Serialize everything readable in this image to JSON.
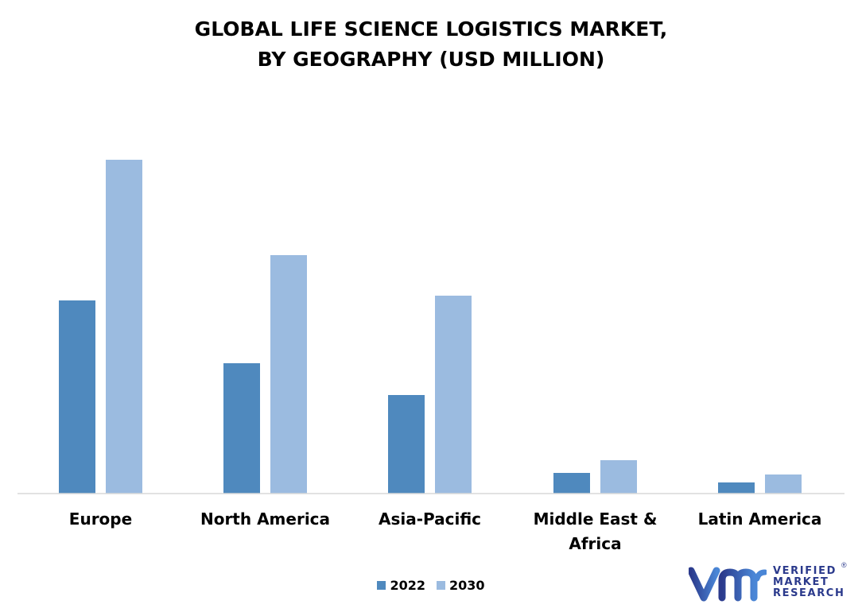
{
  "chart_data": {
    "type": "bar",
    "title_lines": [
      "GLOBAL LIFE SCIENCE LOGISTICS MARKET,",
      "BY GEOGRAPHY (USD MILLION)"
    ],
    "categories": [
      "Europe",
      "North America",
      "Asia-Pacific",
      "Middle East & Africa",
      "Latin America"
    ],
    "category_label_lines": [
      [
        "Europe"
      ],
      [
        "North America"
      ],
      [
        "Asia-Pacific"
      ],
      [
        "Middle East &",
        "Africa"
      ],
      [
        "Latin America"
      ]
    ],
    "series": [
      {
        "name": "2022",
        "color": "#4f89be",
        "values": [
          243,
          164,
          124,
          26,
          14
        ]
      },
      {
        "name": "2030",
        "color": "#9bbbe0",
        "values": [
          420,
          300,
          249,
          42,
          24
        ]
      }
    ],
    "ylim": [
      0,
      420
    ],
    "axis_ticks_visible": false,
    "grid": false,
    "legend_position": "bottom-center"
  },
  "logo": {
    "lines": [
      "VERIFIED",
      "MARKET",
      "RESEARCH"
    ],
    "reg_mark": "®",
    "color": "#2b3a8c"
  }
}
